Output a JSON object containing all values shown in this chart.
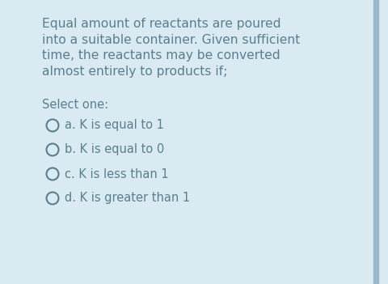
{
  "background_color": "#daeaf3",
  "right_bar_color": "#9ab8c8",
  "question_text_lines": [
    "Equal amount of reactants are poured",
    "into a suitable container. Given sufficient",
    "time, the reactants may be converted",
    "almost entirely to products if;"
  ],
  "select_label": "Select one:",
  "options": [
    "a. K is equal to 1",
    "b. K is equal to 0",
    "c. K is less than 1",
    "d. K is greater than 1"
  ],
  "text_color": "#5a7e8e",
  "font_size_question": 11.2,
  "font_size_select": 10.5,
  "font_size_option": 10.5,
  "figwidth": 4.8,
  "figheight": 3.51,
  "dpi": 100
}
